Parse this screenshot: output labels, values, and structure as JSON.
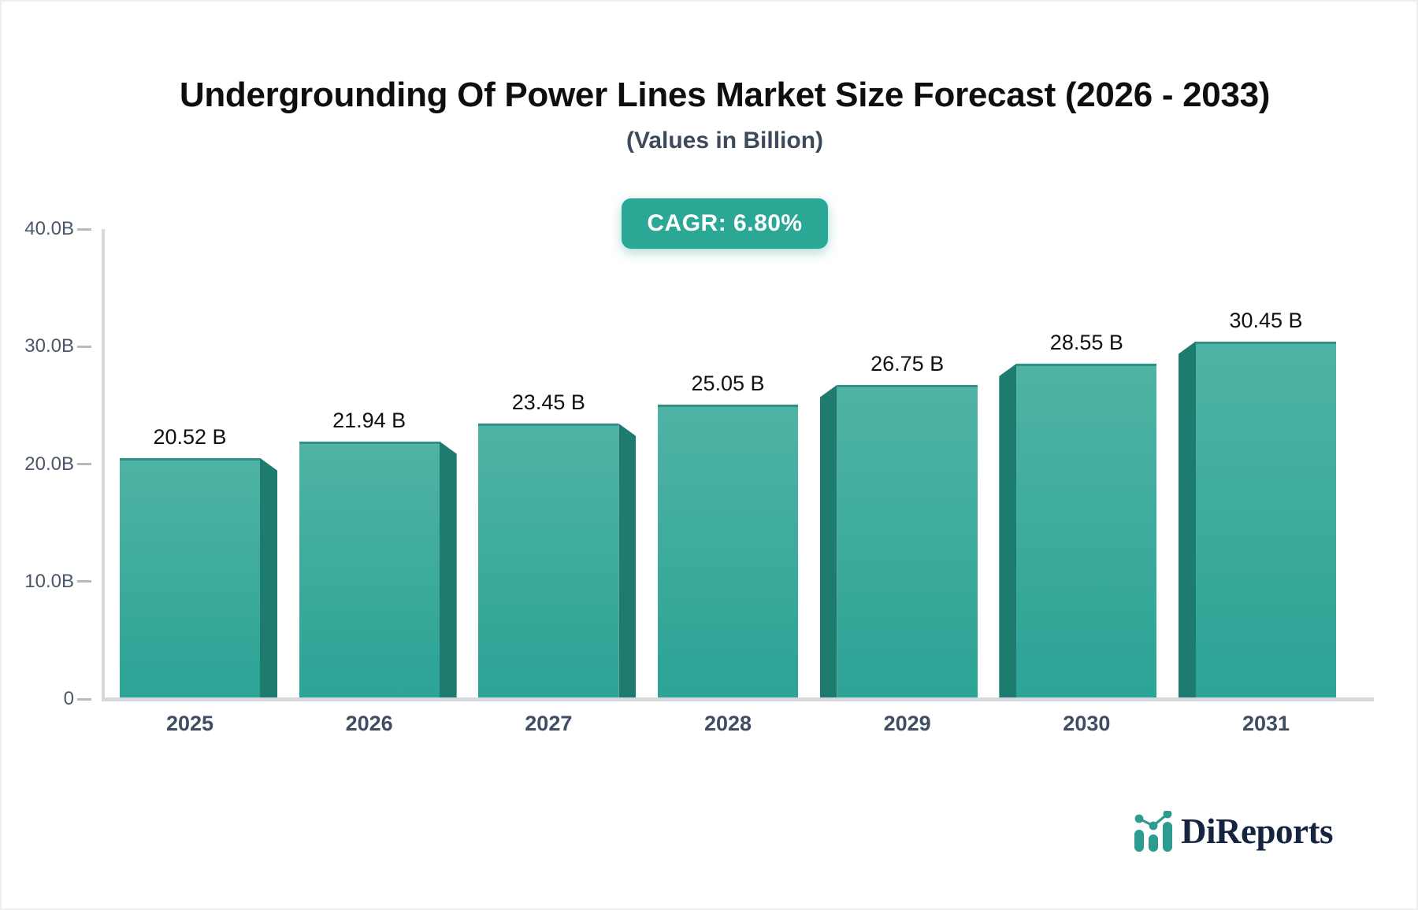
{
  "header": {
    "title": "Undergrounding Of Power Lines Market Size Forecast (2026 - 2033)",
    "subtitle": "(Values in Billion)",
    "cagr_badge": "CAGR: 6.80%"
  },
  "chart_data": {
    "type": "bar",
    "title": "Undergrounding Of Power Lines Market Size Forecast (2026 - 2033)",
    "subtitle": "(Values in Billion)",
    "unit": "Billion",
    "cagr": "6.80%",
    "categories": [
      "2025",
      "2026",
      "2027",
      "2028",
      "2029",
      "2030",
      "2031"
    ],
    "values": [
      20.52,
      21.94,
      23.45,
      25.05,
      26.75,
      28.55,
      30.45
    ],
    "value_labels": [
      "20.52 B",
      "21.94 B",
      "23.45 B",
      "25.05 B",
      "26.75 B",
      "28.55 B",
      "30.45 B"
    ],
    "ylim": [
      0,
      40
    ],
    "y_ticks": [
      {
        "label": "40.0B",
        "value": 40
      },
      {
        "label": "30.0B",
        "value": 30
      },
      {
        "label": "20.0B",
        "value": 20
      },
      {
        "label": "10.0B",
        "value": 10
      },
      {
        "label": "0",
        "value": 0
      }
    ],
    "grid": false,
    "legend": false,
    "bar_style": "3d-perspective"
  },
  "colors": {
    "bar_face_top": "#4fb3a5",
    "bar_face_bottom": "#2ba395",
    "bar_face_edge": "#2f9084",
    "bar_side": "#1e7b6f",
    "badge_bg": "#2aa795",
    "badge_text": "#ffffff",
    "axis_line": "#d5d8dd",
    "tick_dash": "#b4bac2",
    "y_label_color": "#4a5769",
    "x_label_color": "#3f4e63",
    "value_label_color": "#101010",
    "title_color": "#0e0e0e",
    "subtitle_color": "#3d4a5c",
    "logo_navy": "#16253f",
    "logo_teal": "#2b9c8e"
  },
  "branding": {
    "logo_text": "DiReports",
    "logo_icon": "trend-bars-icon"
  }
}
